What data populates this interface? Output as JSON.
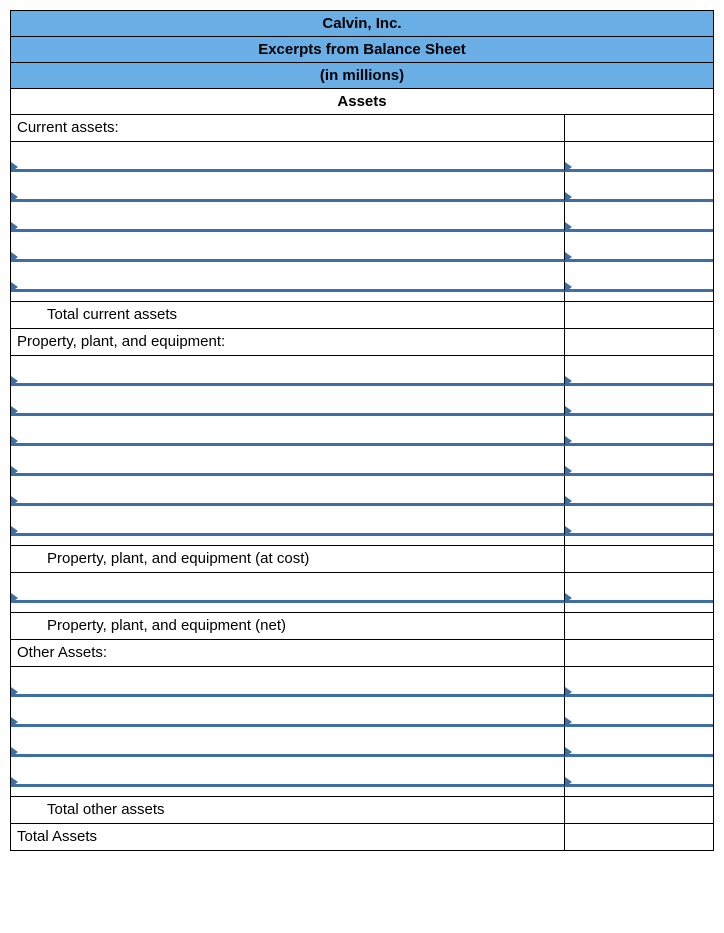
{
  "header": {
    "company": "Calvin, Inc.",
    "subtitle": "Excerpts from Balance Sheet",
    "units": "(in millions)"
  },
  "section_title": "Assets",
  "rows": [
    {
      "type": "label",
      "text": "Current assets:",
      "indent": false
    },
    {
      "type": "drop"
    },
    {
      "type": "drop"
    },
    {
      "type": "drop"
    },
    {
      "type": "drop"
    },
    {
      "type": "drop"
    },
    {
      "type": "spacer"
    },
    {
      "type": "label",
      "text": "Total current assets",
      "indent": true
    },
    {
      "type": "label",
      "text": "Property, plant, and equipment:",
      "indent": false
    },
    {
      "type": "drop"
    },
    {
      "type": "drop"
    },
    {
      "type": "drop"
    },
    {
      "type": "drop"
    },
    {
      "type": "drop"
    },
    {
      "type": "drop"
    },
    {
      "type": "spacer"
    },
    {
      "type": "label",
      "text": "Property, plant, and equipment (at cost)",
      "indent": true
    },
    {
      "type": "drop"
    },
    {
      "type": "spacer"
    },
    {
      "type": "label",
      "text": "Property, plant, and equipment (net)",
      "indent": true
    },
    {
      "type": "label",
      "text": "Other Assets:",
      "indent": false
    },
    {
      "type": "drop"
    },
    {
      "type": "drop"
    },
    {
      "type": "drop"
    },
    {
      "type": "drop"
    },
    {
      "type": "spacer"
    },
    {
      "type": "label",
      "text": "Total other assets",
      "indent": true
    },
    {
      "type": "label",
      "text": "Total Assets",
      "indent": false
    }
  ],
  "colors": {
    "header_bg": "#6aaee6",
    "drop_border": "#3d6fa5",
    "border": "#000000"
  }
}
